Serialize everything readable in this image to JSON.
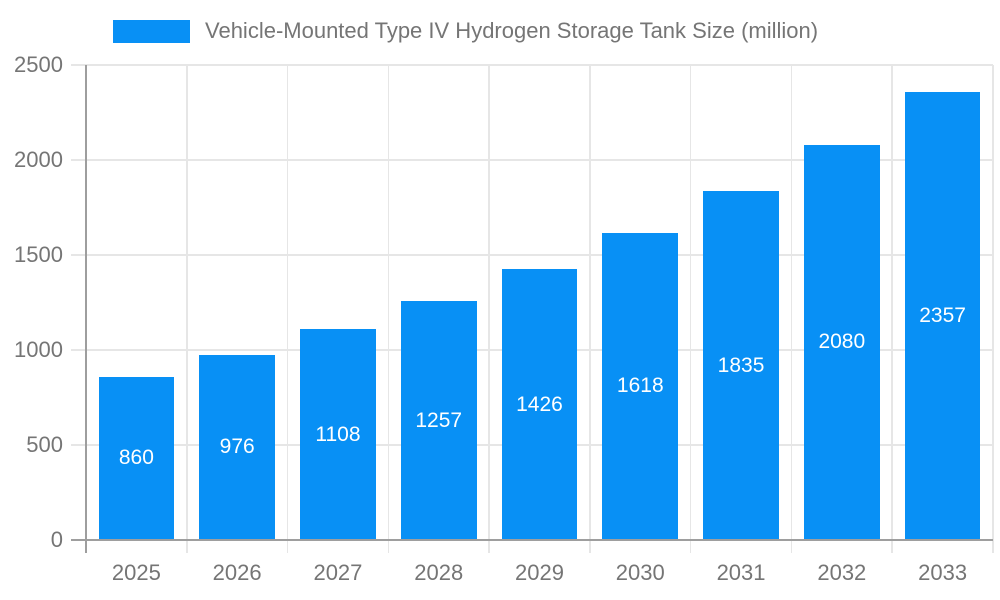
{
  "chart_data": {
    "type": "bar",
    "title": "Vehicle-Mounted Type IV Hydrogen Storage Tank Size (million)",
    "categories": [
      "2025",
      "2026",
      "2027",
      "2028",
      "2029",
      "2030",
      "2031",
      "2032",
      "2033"
    ],
    "values": [
      860,
      976,
      1108,
      1257,
      1426,
      1618,
      1835,
      2080,
      2357
    ],
    "xlabel": "",
    "ylabel": "",
    "ylim": [
      0,
      2500
    ],
    "yticks": [
      0,
      500,
      1000,
      1500,
      2000,
      2500
    ],
    "grid": true,
    "legend_position": "top-left",
    "colors": {
      "bar": "#0890f5",
      "value_label": "#ffffff",
      "axis_text": "#757575",
      "grid_line": "#e6e6e6",
      "axis_line": "#9e9e9e",
      "background": "#ffffff"
    }
  }
}
